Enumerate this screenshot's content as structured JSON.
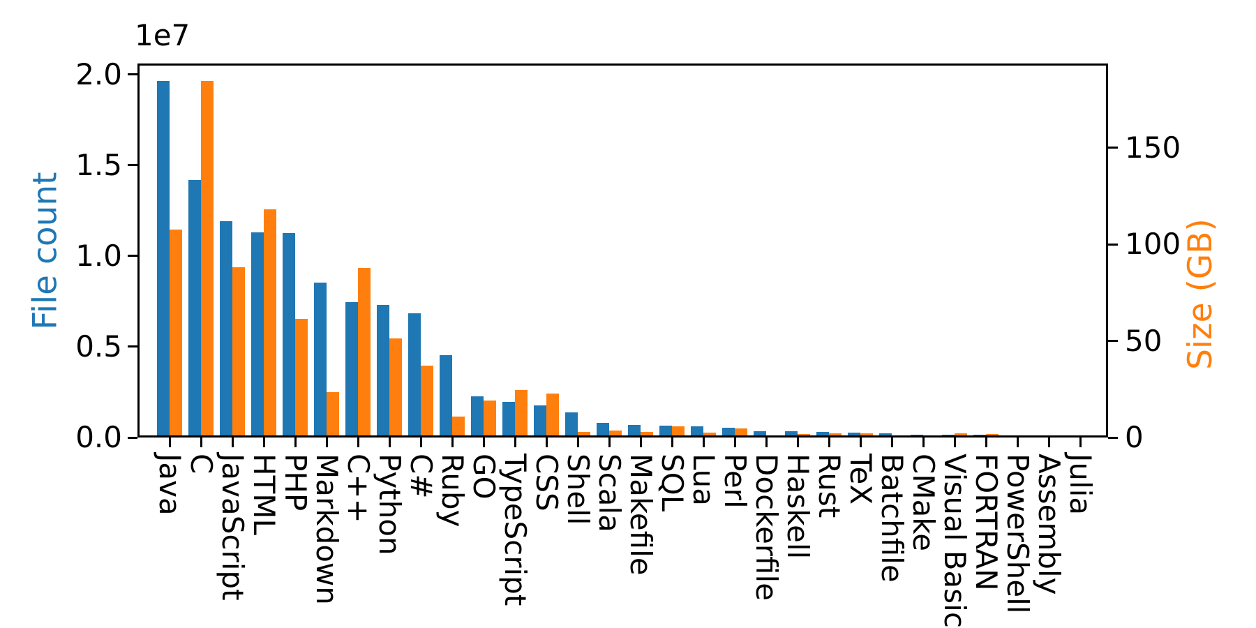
{
  "chart_data": {
    "type": "bar",
    "title": "",
    "categories": [
      "Java",
      "C",
      "JavaScript",
      "HTML",
      "PHP",
      "Markdown",
      "C++",
      "Python",
      "C#",
      "Ruby",
      "GO",
      "TypeScript",
      "CSS",
      "Shell",
      "Scala",
      "Makefile",
      "SQL",
      "Lua",
      "Perl",
      "Dockerfile",
      "Haskell",
      "Rust",
      "TeX",
      "Batchfile",
      "CMake",
      "Visual Basic",
      "FORTRAN",
      "PowerShell",
      "Assembly",
      "Julia"
    ],
    "series": [
      {
        "name": "File count",
        "axis": "left",
        "color": "#1f77b4",
        "values": [
          19650000,
          14200000,
          11900000,
          11300000,
          11250000,
          8550000,
          7450000,
          7300000,
          6850000,
          4530000,
          2280000,
          1950000,
          1750000,
          1400000,
          800000,
          680000,
          670000,
          600000,
          520000,
          340000,
          330000,
          320000,
          250000,
          240000,
          160000,
          150000,
          140000,
          130000,
          100000,
          40000
        ]
      },
      {
        "name": "Size (GB)",
        "axis": "right",
        "color": "#ff7f0e",
        "values": [
          107.5,
          184.5,
          88,
          118,
          61.3,
          23.3,
          87.8,
          51.2,
          37.3,
          10.8,
          19.3,
          24.5,
          22.8,
          2.9,
          3.7,
          2.9,
          5.6,
          2.6,
          4.7,
          0.6,
          1.7,
          2.2,
          2.2,
          0.3,
          0.25,
          2.1,
          1.9,
          0.3,
          0.6,
          0.15
        ]
      }
    ],
    "left_axis": {
      "label": "File count",
      "color": "#1f77b4",
      "offset_text": "1e7",
      "tick_labels": [
        "0.0",
        "0.5",
        "1.0",
        "1.5",
        "2.0"
      ],
      "tick_values": [
        0,
        5000000,
        10000000,
        15000000,
        20000000
      ],
      "range": [
        0,
        20600000
      ]
    },
    "right_axis": {
      "label": "Size (GB)",
      "color": "#ff7f0e",
      "tick_labels": [
        "0",
        "50",
        "100",
        "150"
      ],
      "tick_values": [
        0,
        50,
        100,
        150
      ],
      "range": [
        0,
        193.6
      ]
    },
    "x_axis": {
      "tick_label_rotation": 90
    },
    "legend": {
      "visible": false
    },
    "grid": false
  }
}
